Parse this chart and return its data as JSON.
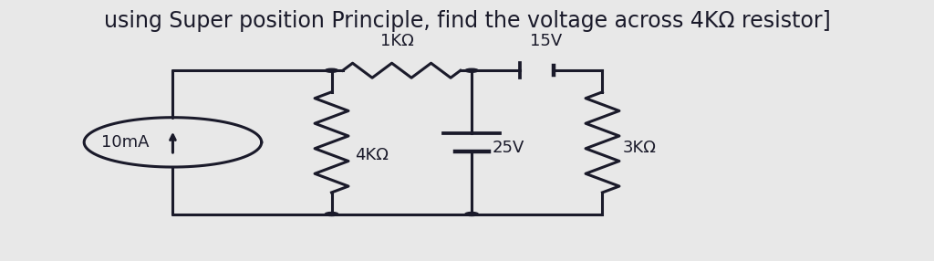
{
  "bg_color": "#e8e8e8",
  "paper_color": "#f0f0f0",
  "line_color": "#1a1a2a",
  "title_text": "using Super position Principle, find the voltage across 4KΩ resistor]",
  "title_fontsize": 17,
  "lw": 2.2,
  "nodes": {
    "xl": 0.185,
    "xm1": 0.355,
    "xm2": 0.505,
    "xr": 0.645,
    "yt": 0.73,
    "yb": 0.18
  },
  "labels": {
    "r1k": "1KΩ",
    "r4k": "4KΩ",
    "r3k": "3KΩ",
    "v15": "15V",
    "v25": "25V",
    "i10": "10mA",
    "fs": 13
  }
}
